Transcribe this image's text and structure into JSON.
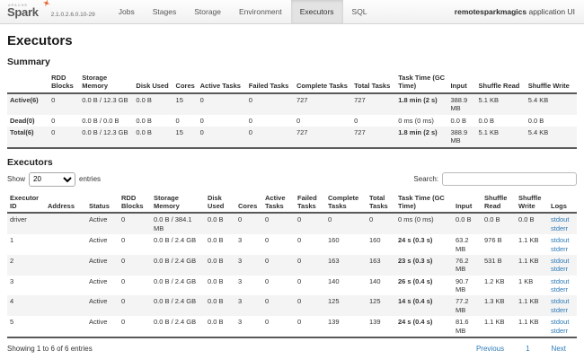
{
  "colors": {
    "accent_orange": "#e8622d",
    "link_blue": "#2d7bb9",
    "stripe": "#f4f4f4"
  },
  "navbar": {
    "logo": {
      "apache": "APACHE",
      "brand": "Spark",
      "star_icon": "spark-star-icon",
      "version": "2.1.0.2.6.0.10-29"
    },
    "tabs": [
      {
        "label": "Jobs",
        "active": false
      },
      {
        "label": "Stages",
        "active": false
      },
      {
        "label": "Storage",
        "active": false
      },
      {
        "label": "Environment",
        "active": false
      },
      {
        "label": "Executors",
        "active": true
      },
      {
        "label": "SQL",
        "active": false
      }
    ],
    "app_name": "remotesparkmagics",
    "app_suffix": " application UI"
  },
  "page": {
    "title": "Executors"
  },
  "summary": {
    "heading": "Summary",
    "columns": [
      "",
      "RDD Blocks",
      "Storage Memory",
      "Disk Used",
      "Cores",
      "Active Tasks",
      "Failed Tasks",
      "Complete Tasks",
      "Total Tasks",
      "Task Time (GC Time)",
      "Input",
      "Shuffle Read",
      "Shuffle Write"
    ],
    "rows": [
      {
        "label": "Active(6)",
        "cells": [
          "0",
          "0.0 B / 12.3 GB",
          "0.0 B",
          "15",
          "0",
          "0",
          "727",
          "727",
          "1.8 min (2 s)",
          "388.9 MB",
          "5.1 KB",
          "5.4 KB"
        ]
      },
      {
        "label": "Dead(0)",
        "cells": [
          "0",
          "0.0 B / 0.0 B",
          "0.0 B",
          "0",
          "0",
          "0",
          "0",
          "0",
          "0 ms (0 ms)",
          "0.0 B",
          "0.0 B",
          "0.0 B"
        ]
      },
      {
        "label": "Total(6)",
        "cells": [
          "0",
          "0.0 B / 12.3 GB",
          "0.0 B",
          "15",
          "0",
          "0",
          "727",
          "727",
          "1.8 min (2 s)",
          "388.9 MB",
          "5.1 KB",
          "5.4 KB"
        ]
      }
    ]
  },
  "executors": {
    "heading": "Executors",
    "show_label": "Show",
    "entries_label": "entries",
    "page_size": "20",
    "search_label": "Search:",
    "search_value": "",
    "columns": [
      "Executor ID",
      "Address",
      "Status",
      "RDD Blocks",
      "Storage Memory",
      "Disk Used",
      "Cores",
      "Active Tasks",
      "Failed Tasks",
      "Complete Tasks",
      "Total Tasks",
      "Task Time (GC Time)",
      "Input",
      "Shuffle Read",
      "Shuffle Write",
      "Logs"
    ],
    "rows": [
      {
        "id": "driver",
        "address": "",
        "status": "Active",
        "rdd_blocks": "0",
        "storage_memory": "0.0 B / 384.1 MB",
        "disk_used": "0.0 B",
        "cores": "0",
        "active_tasks": "0",
        "failed_tasks": "0",
        "complete_tasks": "0",
        "total_tasks": "0",
        "task_time": "0 ms (0 ms)",
        "input": "0.0 B",
        "shuffle_read": "0.0 B",
        "shuffle_write": "0.0 B",
        "logs": [
          "stdout",
          "stderr"
        ]
      },
      {
        "id": "1",
        "address": "",
        "status": "Active",
        "rdd_blocks": "0",
        "storage_memory": "0.0 B / 2.4 GB",
        "disk_used": "0.0 B",
        "cores": "3",
        "active_tasks": "0",
        "failed_tasks": "0",
        "complete_tasks": "160",
        "total_tasks": "160",
        "task_time": "24 s (0.3 s)",
        "input": "63.2 MB",
        "shuffle_read": "976 B",
        "shuffle_write": "1.1 KB",
        "logs": [
          "stdout",
          "stderr"
        ]
      },
      {
        "id": "2",
        "address": "",
        "status": "Active",
        "rdd_blocks": "0",
        "storage_memory": "0.0 B / 2.4 GB",
        "disk_used": "0.0 B",
        "cores": "3",
        "active_tasks": "0",
        "failed_tasks": "0",
        "complete_tasks": "163",
        "total_tasks": "163",
        "task_time": "23 s (0.3 s)",
        "input": "76.2 MB",
        "shuffle_read": "531 B",
        "shuffle_write": "1.1 KB",
        "logs": [
          "stdout",
          "stderr"
        ]
      },
      {
        "id": "3",
        "address": "",
        "status": "Active",
        "rdd_blocks": "0",
        "storage_memory": "0.0 B / 2.4 GB",
        "disk_used": "0.0 B",
        "cores": "3",
        "active_tasks": "0",
        "failed_tasks": "0",
        "complete_tasks": "140",
        "total_tasks": "140",
        "task_time": "26 s (0.4 s)",
        "input": "90.7 MB",
        "shuffle_read": "1.2 KB",
        "shuffle_write": "1 KB",
        "logs": [
          "stdout",
          "stderr"
        ]
      },
      {
        "id": "4",
        "address": "",
        "status": "Active",
        "rdd_blocks": "0",
        "storage_memory": "0.0 B / 2.4 GB",
        "disk_used": "0.0 B",
        "cores": "3",
        "active_tasks": "0",
        "failed_tasks": "0",
        "complete_tasks": "125",
        "total_tasks": "125",
        "task_time": "14 s (0.4 s)",
        "input": "77.2 MB",
        "shuffle_read": "1.3 KB",
        "shuffle_write": "1.1 KB",
        "logs": [
          "stdout",
          "stderr"
        ]
      },
      {
        "id": "5",
        "address": "",
        "status": "Active",
        "rdd_blocks": "0",
        "storage_memory": "0.0 B / 2.4 GB",
        "disk_used": "0.0 B",
        "cores": "3",
        "active_tasks": "0",
        "failed_tasks": "0",
        "complete_tasks": "139",
        "total_tasks": "139",
        "task_time": "24 s (0.4 s)",
        "input": "81.6 MB",
        "shuffle_read": "1.1 KB",
        "shuffle_write": "1.1 KB",
        "logs": [
          "stdout",
          "stderr"
        ]
      }
    ],
    "footer": {
      "info": "Showing 1 to 6 of 6 entries",
      "previous": "Previous",
      "page": "1",
      "next": "Next"
    }
  }
}
